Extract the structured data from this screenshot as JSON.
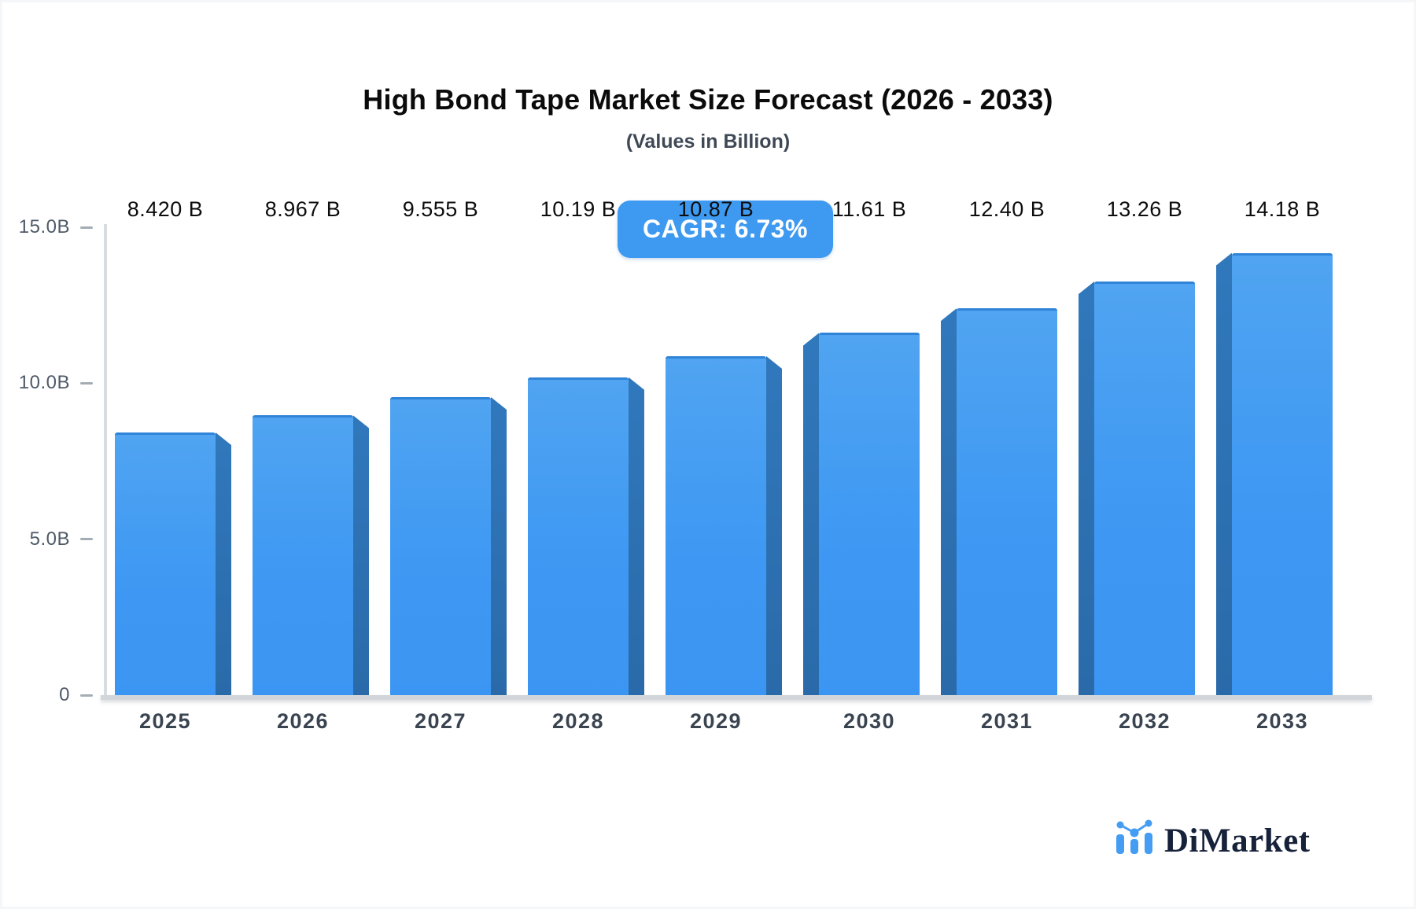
{
  "title": "High Bond Tape Market Size Forecast (2026 - 2033)",
  "subtitle": "(Values in Billion)",
  "badge": {
    "label": "CAGR: 6.73%",
    "color": "#3e99f0"
  },
  "brand": {
    "name": "DiMarket",
    "icon": "bar-chart-logo-icon",
    "icon_color": "#459df3",
    "text_color": "#16213a"
  },
  "colors": {
    "bar_front_top": "#50a4f1",
    "bar_front_bottom": "#3b95f2",
    "bar_side": "#2c70b2",
    "axis_line": "#d9dcdf",
    "tick_label": "#4f5a68",
    "year_label": "#3a4450",
    "value_label": "#0d0d0d"
  },
  "chart_data": {
    "type": "bar",
    "title": "High Bond Tape Market Size Forecast (2026 - 2033)",
    "subtitle": "(Values in Billion)",
    "cagr": "6.73%",
    "categories": [
      "2025",
      "2026",
      "2027",
      "2028",
      "2029",
      "2030",
      "2031",
      "2032",
      "2033"
    ],
    "values": [
      8.42,
      8.967,
      9.555,
      10.19,
      10.87,
      11.61,
      12.4,
      13.26,
      14.18
    ],
    "value_labels": [
      "8.420 B",
      "8.967 B",
      "9.555 B",
      "10.19 B",
      "10.87 B",
      "11.61 B",
      "12.40 B",
      "13.26 B",
      "14.18 B"
    ],
    "xlabel": "",
    "ylabel": "",
    "ylim": [
      0,
      15
    ],
    "yticks": [
      {
        "value": 0,
        "label": "0"
      },
      {
        "value": 5,
        "label": "5.0B"
      },
      {
        "value": 10,
        "label": "10.0B"
      },
      {
        "value": 15,
        "label": "15.0B"
      }
    ],
    "grid": false,
    "legend": false,
    "units": "Billion"
  }
}
